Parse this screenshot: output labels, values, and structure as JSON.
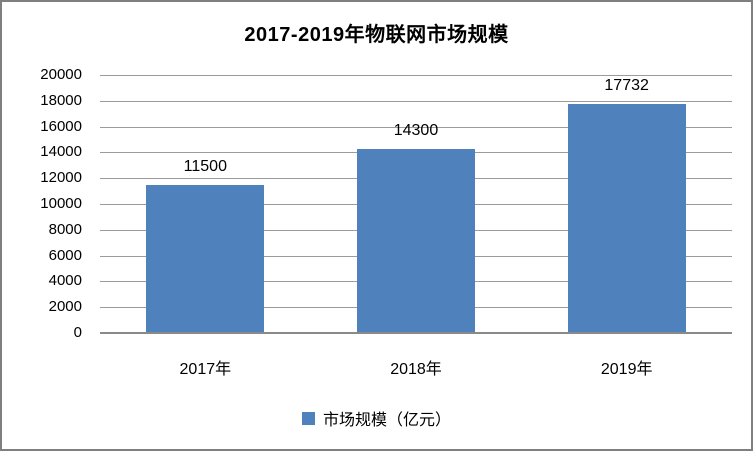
{
  "chart_data": {
    "type": "bar",
    "title": "2017-2019年物联网市场规模",
    "categories": [
      "2017年",
      "2018年",
      "2019年"
    ],
    "series": [
      {
        "name": "市场规模（亿元）",
        "values": [
          11500,
          14300,
          17732
        ]
      }
    ],
    "data_labels": [
      "11500",
      "14300",
      "17732"
    ],
    "xlabel": "",
    "ylabel": "",
    "ylim": [
      0,
      20000
    ],
    "ytick_step": 2000,
    "ytick_labels": [
      "0",
      "2000",
      "4000",
      "6000",
      "8000",
      "10000",
      "12000",
      "14000",
      "16000",
      "18000",
      "20000"
    ],
    "grid": true,
    "legend_position": "bottom",
    "colors": {
      "bar": "#4f81bd",
      "gridline": "#9b9b9b",
      "axis_line": "#8a8a8a",
      "frame_border": "#7f7f7f",
      "text": "#000000"
    }
  }
}
